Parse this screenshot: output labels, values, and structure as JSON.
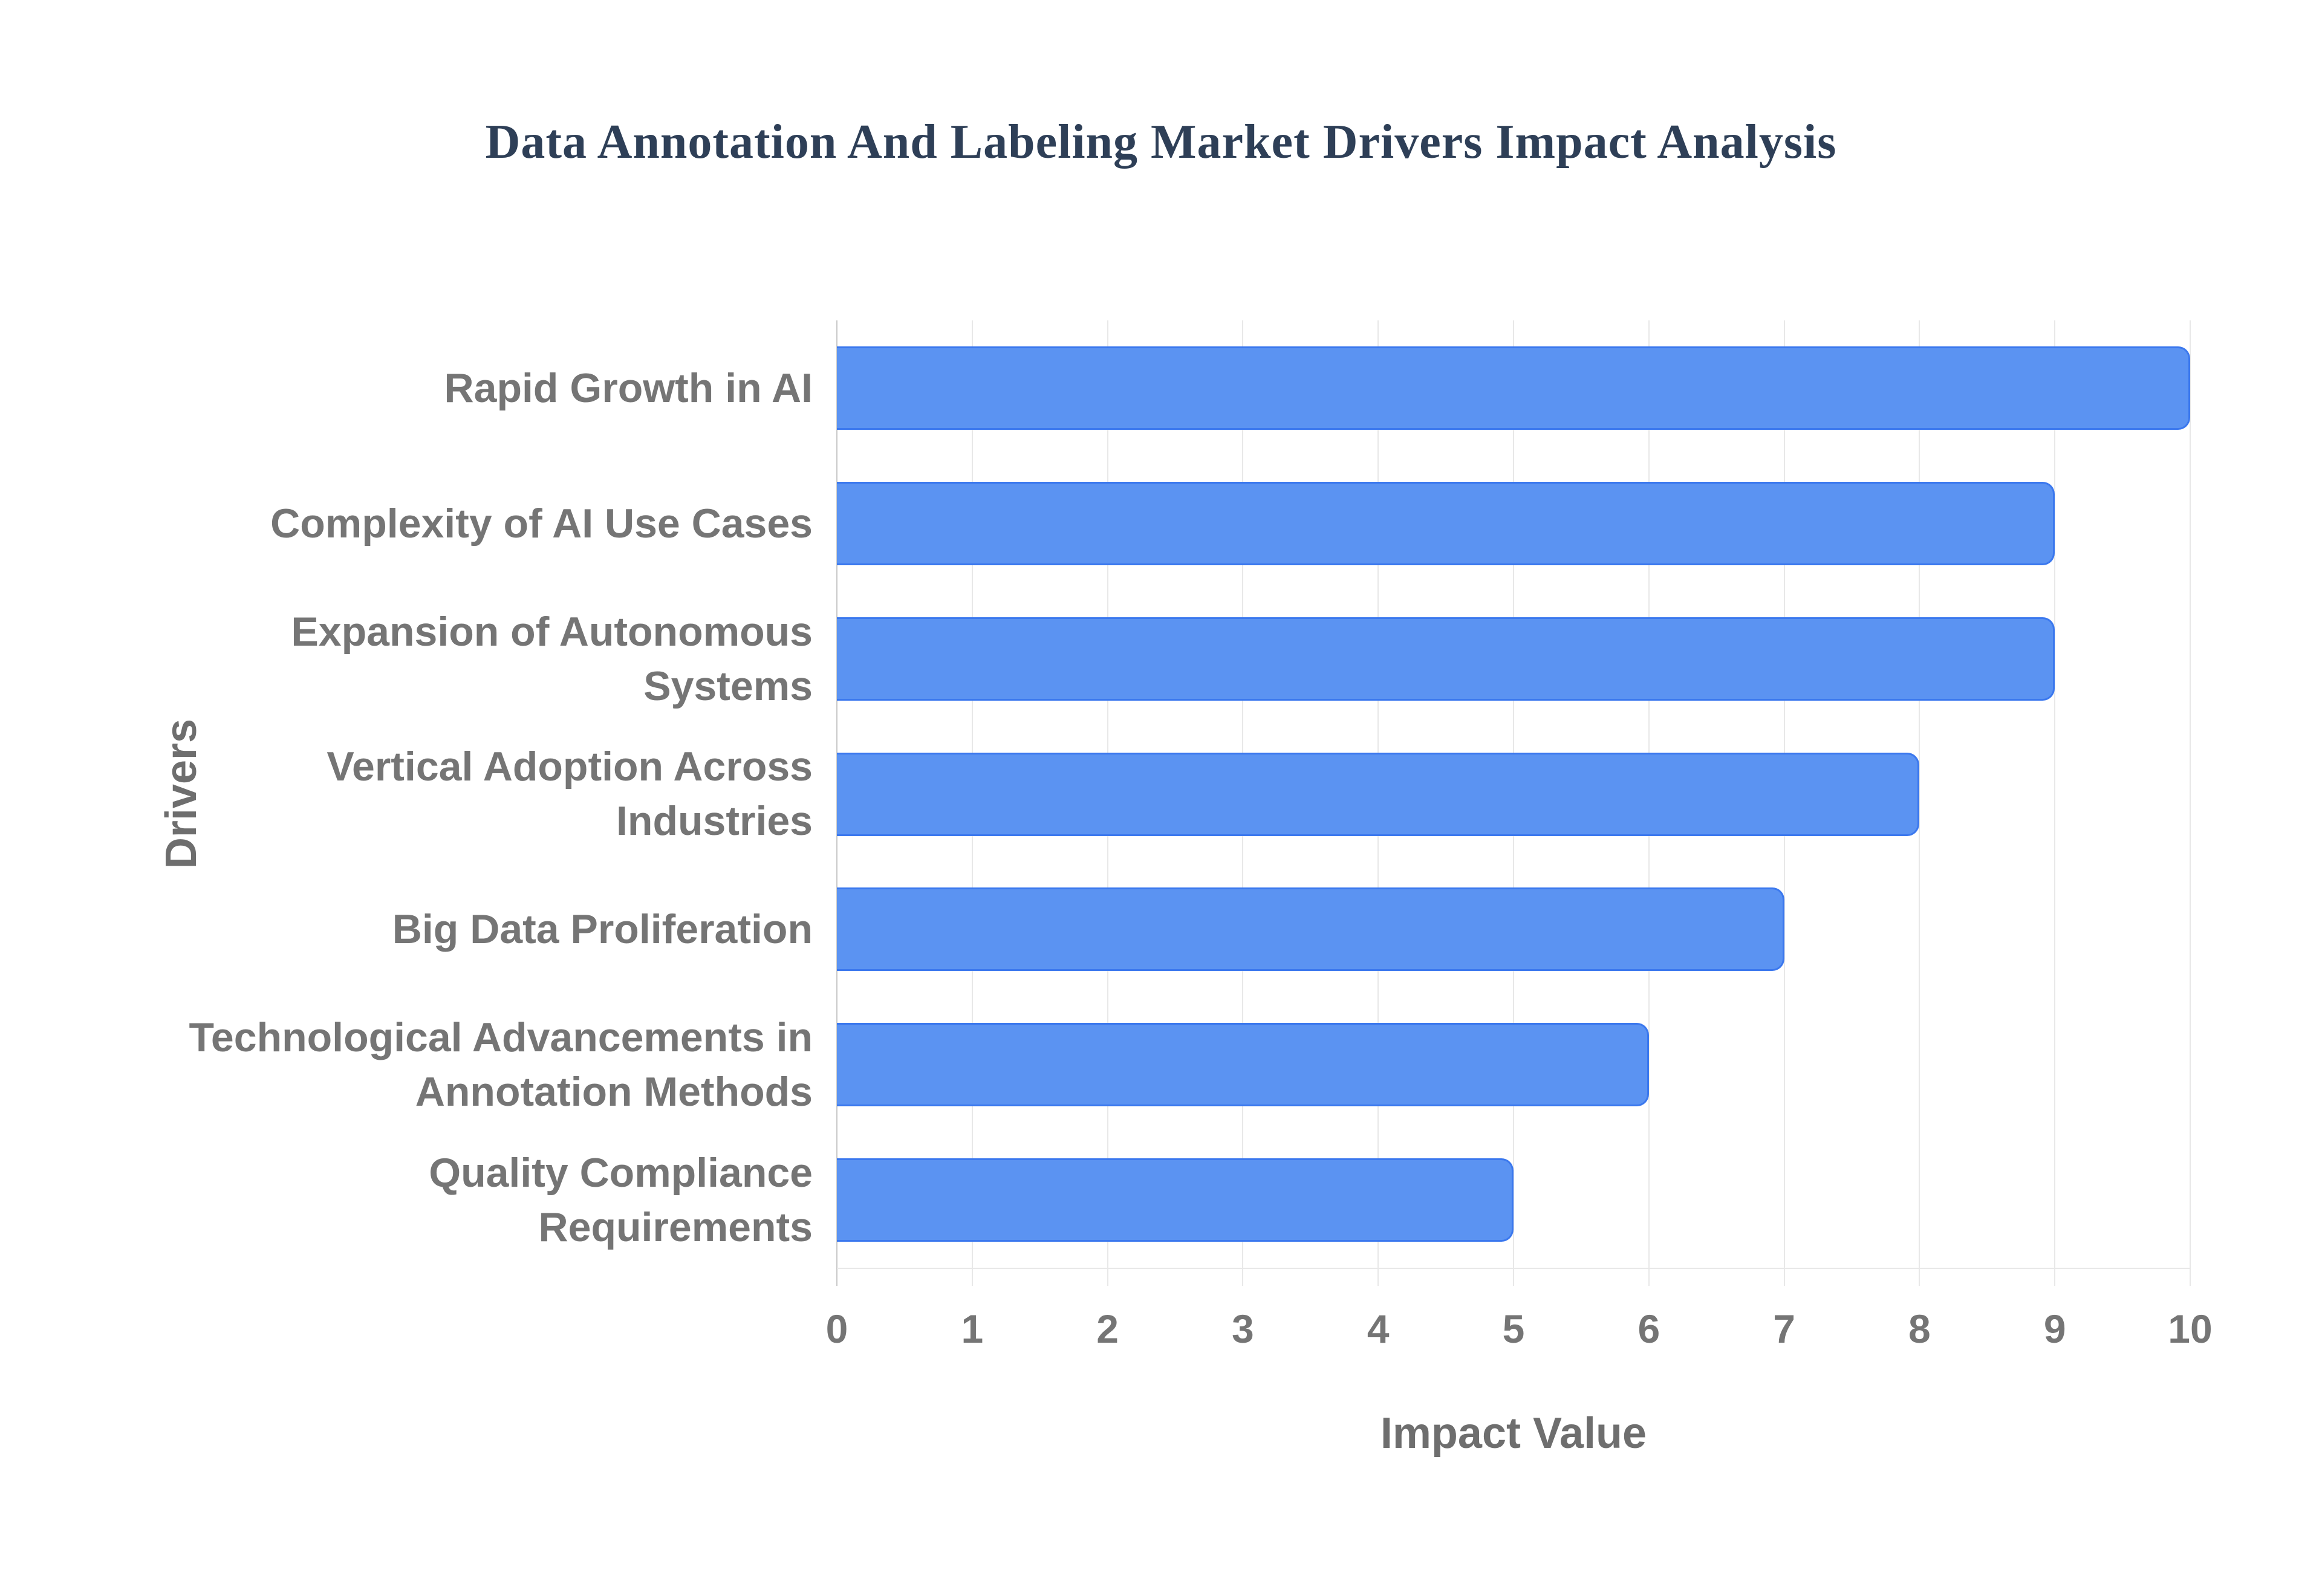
{
  "chart_data": {
    "type": "bar",
    "orientation": "horizontal",
    "title": "Data Annotation And Labeling Market Drivers Impact Analysis",
    "categories": [
      "Rapid Growth in AI",
      "Complexity of AI Use Cases",
      "Expansion of Autonomous Systems",
      "Vertical Adoption Across Industries",
      "Big Data Proliferation",
      "Technological Advancements in Annotation Methods",
      "Quality Compliance Requirements"
    ],
    "values": [
      10,
      9,
      9,
      8,
      7,
      6,
      5
    ],
    "xlabel": "Impact Value",
    "ylabel": "Drivers",
    "xlim": [
      0,
      10
    ],
    "xticks": [
      0,
      1,
      2,
      3,
      4,
      5,
      6,
      7,
      8,
      9,
      10
    ],
    "grid": true,
    "legend": "none",
    "colors": {
      "bar_fill": "#5b93f2",
      "bar_border": "#3b78ee",
      "title_text": "#2e3f57",
      "label_text": "#757575",
      "axis_title_text": "#6e6e6e",
      "gridline": "#e8e8e8",
      "axis_line": "#c9c9c9",
      "background": "#ffffff"
    }
  }
}
